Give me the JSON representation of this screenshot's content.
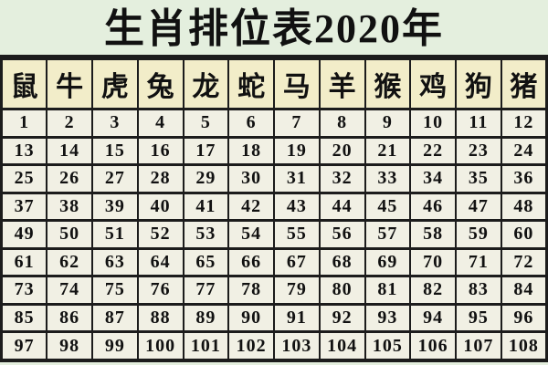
{
  "title": "生肖排位表2020年",
  "table": {
    "headers": [
      "鼠",
      "牛",
      "虎",
      "兔",
      "龙",
      "蛇",
      "马",
      "羊",
      "猴",
      "鸡",
      "狗",
      "猪"
    ],
    "rows": [
      [
        1,
        2,
        3,
        4,
        5,
        6,
        7,
        8,
        9,
        10,
        11,
        12
      ],
      [
        13,
        14,
        15,
        16,
        17,
        18,
        19,
        20,
        21,
        22,
        23,
        24
      ],
      [
        25,
        26,
        27,
        28,
        29,
        30,
        31,
        32,
        33,
        34,
        35,
        36
      ],
      [
        37,
        38,
        39,
        40,
        41,
        42,
        43,
        44,
        45,
        46,
        47,
        48
      ],
      [
        49,
        50,
        51,
        52,
        53,
        54,
        55,
        56,
        57,
        58,
        59,
        60
      ],
      [
        61,
        62,
        63,
        64,
        65,
        66,
        67,
        68,
        69,
        70,
        71,
        72
      ],
      [
        73,
        74,
        75,
        76,
        77,
        78,
        79,
        80,
        81,
        82,
        83,
        84
      ],
      [
        85,
        86,
        87,
        88,
        89,
        90,
        91,
        92,
        93,
        94,
        95,
        96
      ],
      [
        97,
        98,
        99,
        100,
        101,
        102,
        103,
        104,
        105,
        106,
        107,
        108
      ]
    ]
  },
  "colors": {
    "title_band_bg": "#e4efde",
    "header_bg": "#f2edc9",
    "cell_bg": "#f1f0e4",
    "border": "#1c1c1c",
    "text": "#111111"
  }
}
